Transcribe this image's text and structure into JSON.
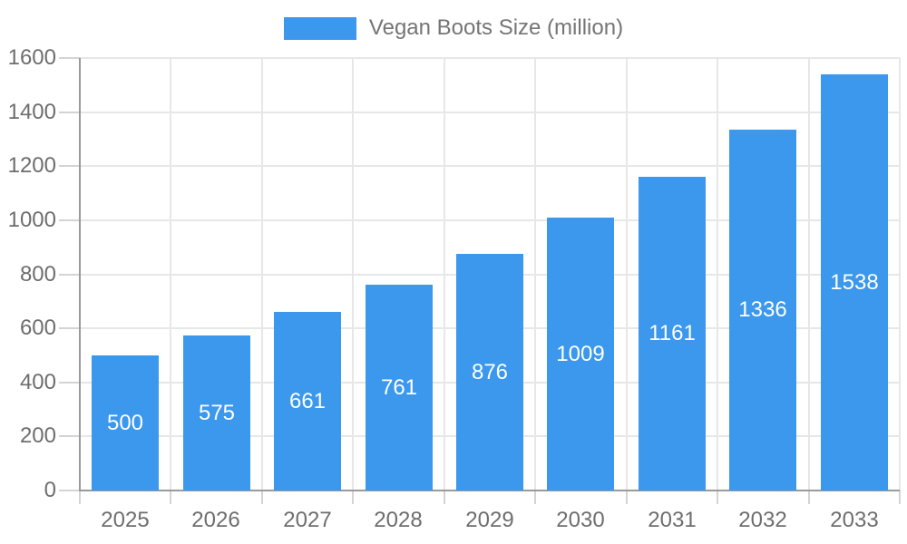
{
  "chart_data": {
    "type": "bar",
    "title": "",
    "legend": {
      "position": "top",
      "label": "Vegan Boots Size (million)"
    },
    "categories": [
      "2025",
      "2026",
      "2027",
      "2028",
      "2029",
      "2030",
      "2031",
      "2032",
      "2033"
    ],
    "series": [
      {
        "name": "Vegan Boots Size (million)",
        "values": [
          500,
          575,
          661,
          761,
          876,
          1009,
          1161,
          1336,
          1538
        ]
      }
    ],
    "bar_value_labels": [
      "500",
      "575",
      "661",
      "761",
      "876",
      "1009",
      "1161",
      "1336",
      "1538"
    ],
    "xlabel": "",
    "ylabel": "",
    "ylim": [
      0,
      1600
    ],
    "yticks": [
      0,
      200,
      400,
      600,
      800,
      1000,
      1200,
      1400,
      1600
    ],
    "grid": true,
    "bar_labels_inside": true,
    "colors": {
      "bar": "#3b98ec",
      "bar_label": "#ffffff",
      "gridline": "#e7e7e7",
      "tick": "#d4d4d4",
      "axis_line": "#9a9a9a",
      "axis_text": "#6e6e6e",
      "legend_text": "#757575",
      "background": "#ffffff"
    }
  }
}
